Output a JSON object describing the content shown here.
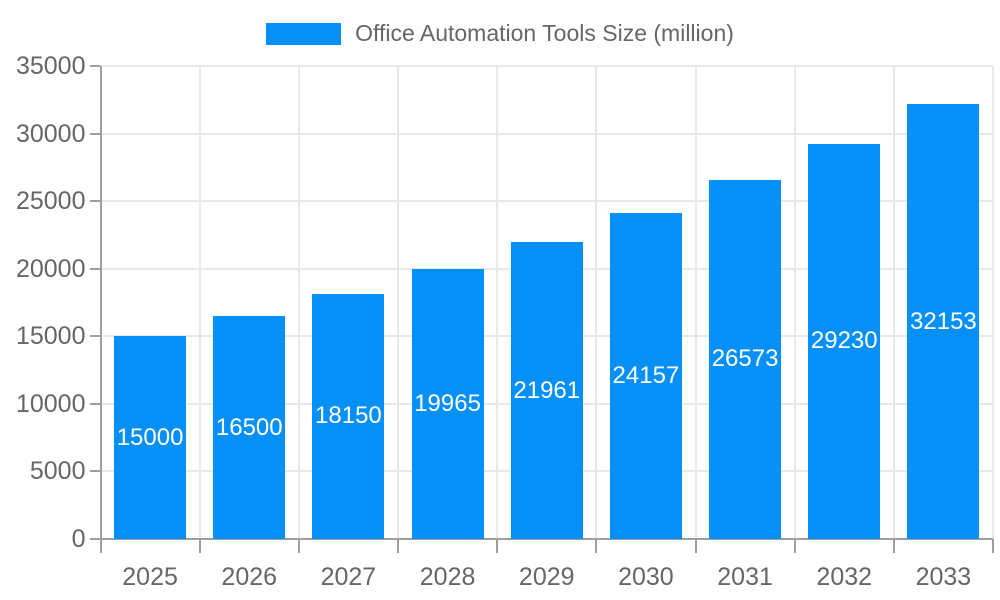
{
  "chart_data": {
    "type": "bar",
    "categories": [
      "2025",
      "2026",
      "2027",
      "2028",
      "2029",
      "2030",
      "2031",
      "2032",
      "2033"
    ],
    "values": [
      15000,
      16500,
      18150,
      19965,
      21961,
      24157,
      26573,
      29230,
      32153
    ],
    "series_name": "Office Automation Tools Size (million)",
    "legend": {
      "label": "Office Automation Tools Size (million)",
      "position": "top-center"
    },
    "ylim": [
      0,
      35000
    ],
    "ytick_step": 5000,
    "yticks": [
      0,
      5000,
      10000,
      15000,
      20000,
      25000,
      30000,
      35000
    ],
    "grid": true,
    "value_labels": "inside-center",
    "colors": {
      "bar": "#0590f8",
      "bar_value_text": "#ffffff",
      "axis_text": "#666666",
      "legend_text": "#666666",
      "grid_line": "#e8e8e8",
      "axis_line": "#9e9e9e"
    }
  }
}
